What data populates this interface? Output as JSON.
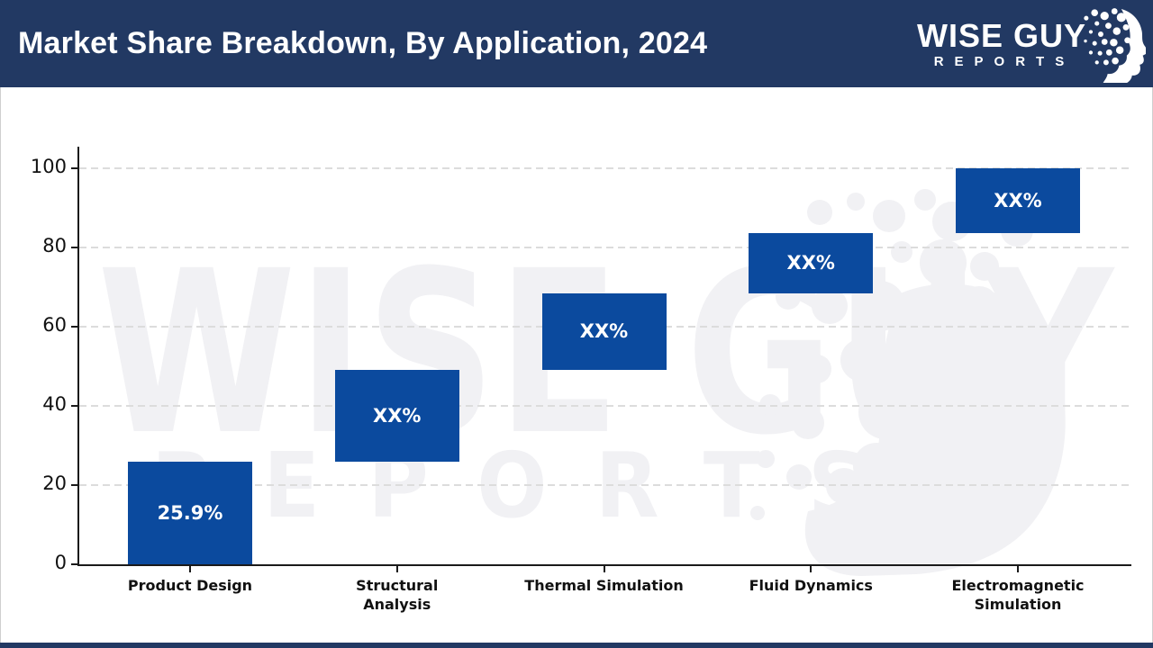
{
  "header": {
    "title": "Market Share Breakdown, By Application, 2024",
    "logo_line1": "WISE GUY",
    "logo_line2": "REPORTS"
  },
  "watermark": {
    "line1": "WISE GUY",
    "line2": "REPORTS"
  },
  "chart_data": {
    "type": "bar",
    "subtype": "waterfall",
    "title": "Market Share Breakdown, By Application, 2024",
    "categories": [
      "Product Design",
      "Structural Analysis",
      "Thermal Simulation",
      "Fluid Dynamics",
      "Electromagnetic Simulation"
    ],
    "category_label_lines": [
      [
        "Product Design"
      ],
      [
        "Structural",
        "Analysis"
      ],
      [
        "Thermal Simulation"
      ],
      [
        "Fluid Dynamics"
      ],
      [
        "Electromagnetic",
        "Simulation"
      ]
    ],
    "segments": [
      {
        "category": "Product Design",
        "start": 0,
        "end": 25.9,
        "label": "25.9%"
      },
      {
        "category": "Structural Analysis",
        "start": 25.9,
        "end": 49.2,
        "label": "XX%"
      },
      {
        "category": "Thermal Simulation",
        "start": 49.2,
        "end": 68.5,
        "label": "XX%"
      },
      {
        "category": "Fluid Dynamics",
        "start": 68.5,
        "end": 83.6,
        "label": "XX%"
      },
      {
        "category": "Electromagnetic Simulation",
        "start": 83.6,
        "end": 100,
        "label": "XX%"
      }
    ],
    "y_ticks": [
      0,
      20,
      40,
      60,
      80,
      100
    ],
    "ylim": [
      0,
      105
    ],
    "xlabel": "",
    "ylabel": "",
    "legend": "none",
    "grid": "horizontal-dashed",
    "colors": {
      "bar": "#0b4a9e",
      "header_bg": "#223963",
      "footer_bg": "#223963",
      "gridline": "#dcdcdc",
      "axis": "#1a1a1a",
      "bar_label_text": "#ffffff",
      "watermark": "#f1f1f4"
    }
  }
}
